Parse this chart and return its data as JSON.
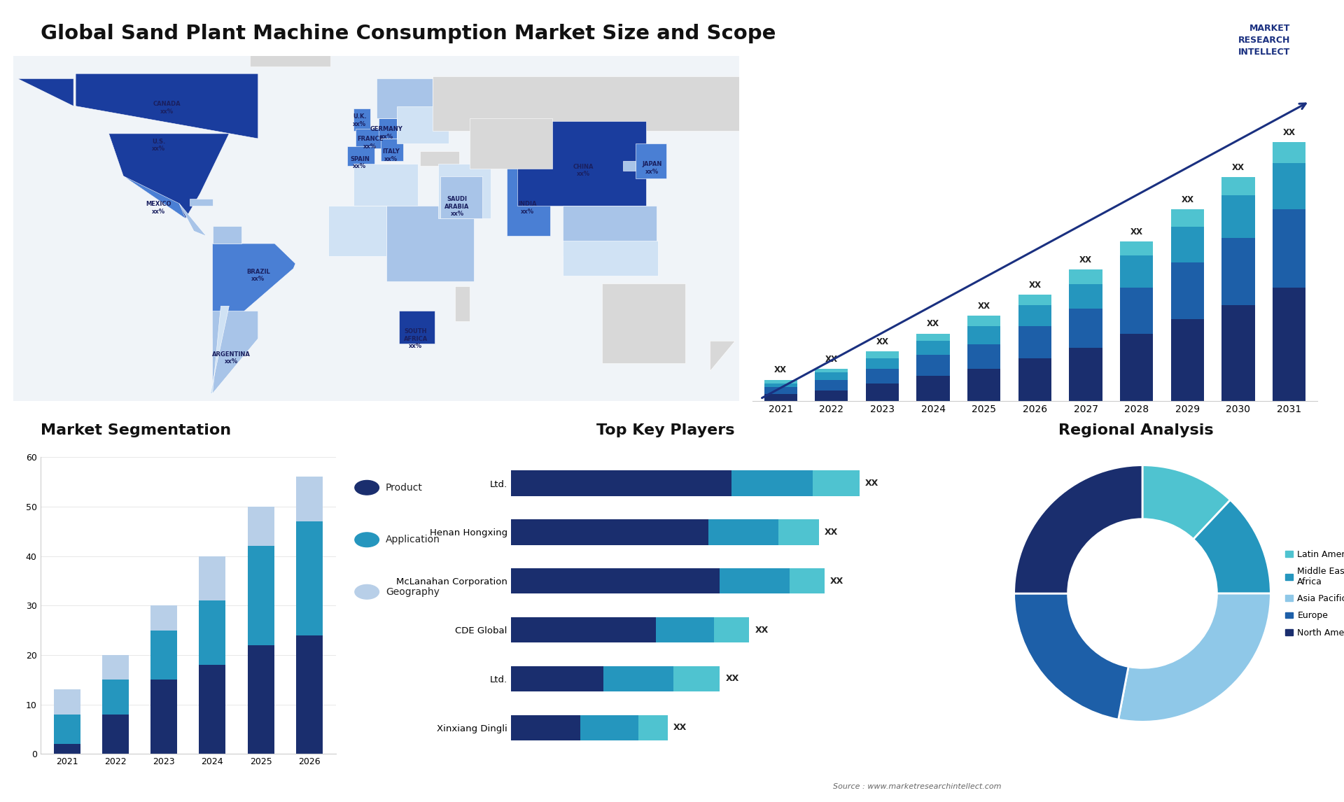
{
  "title": "Global Sand Plant Machine Consumption Market Size and Scope",
  "background_color": "#ffffff",
  "bar_chart": {
    "years": [
      2021,
      2022,
      2023,
      2024,
      2025,
      2026,
      2027,
      2028,
      2029,
      2030,
      2031
    ],
    "segment1": [
      2,
      3,
      5,
      7,
      9,
      12,
      15,
      19,
      23,
      27,
      32
    ],
    "segment2": [
      2,
      3,
      4,
      6,
      7,
      9,
      11,
      13,
      16,
      19,
      22
    ],
    "segment3": [
      1,
      2,
      3,
      4,
      5,
      6,
      7,
      9,
      10,
      12,
      13
    ],
    "segment4": [
      1,
      1,
      2,
      2,
      3,
      3,
      4,
      4,
      5,
      5,
      6
    ],
    "colors": [
      "#1a2e6e",
      "#1d5fa8",
      "#2596be",
      "#4fc3d0"
    ]
  },
  "seg_chart": {
    "years": [
      2021,
      2022,
      2023,
      2024,
      2025,
      2026
    ],
    "product": [
      2,
      8,
      15,
      18,
      22,
      24
    ],
    "application": [
      6,
      7,
      10,
      13,
      20,
      23
    ],
    "geography": [
      5,
      5,
      5,
      9,
      8,
      9
    ],
    "colors": [
      "#1a2e6e",
      "#2596be",
      "#b8cfe8"
    ],
    "ylim": [
      0,
      60
    ],
    "yticks": [
      0,
      10,
      20,
      30,
      40,
      50,
      60
    ]
  },
  "key_players": {
    "names": [
      "Ltd.",
      "Henan Hongxing",
      "McLanahan Corporation",
      "CDE Global",
      "Ltd.",
      "Xinxiang Dingli"
    ],
    "bar1": [
      38,
      34,
      36,
      25,
      16,
      12
    ],
    "bar2": [
      14,
      12,
      12,
      10,
      12,
      10
    ],
    "bar3": [
      8,
      7,
      6,
      6,
      8,
      5
    ],
    "colors": [
      "#1a2e6e",
      "#2596be",
      "#4fc3d0"
    ]
  },
  "pie_chart": {
    "values": [
      12,
      13,
      28,
      22,
      25
    ],
    "colors": [
      "#4fc3d0",
      "#2596be",
      "#8fc8e8",
      "#1d5fa8",
      "#1a2e6e"
    ],
    "labels": [
      "Latin America",
      "Middle East &\nAfrica",
      "Asia Pacific",
      "Europe",
      "North America"
    ]
  },
  "source_text": "Source : www.marketresearchintellect.com",
  "seg_title": "Market Segmentation",
  "players_title": "Top Key Players",
  "regional_title": "Regional Analysis"
}
